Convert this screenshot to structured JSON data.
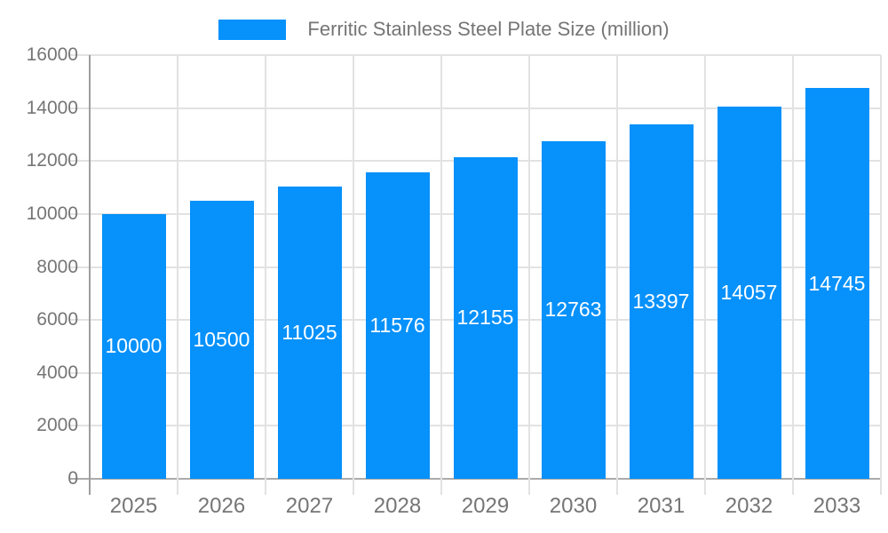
{
  "chart_data": {
    "type": "bar",
    "title": "Ferritic Stainless Steel Plate Size (million)",
    "categories": [
      "2025",
      "2026",
      "2027",
      "2028",
      "2029",
      "2030",
      "2031",
      "2032",
      "2033"
    ],
    "values": [
      10000,
      10500,
      11025,
      11576,
      12155,
      12763,
      13397,
      14057,
      14745
    ],
    "xlabel": "",
    "ylabel": "",
    "ylim": [
      0,
      16000
    ],
    "ytick_step": 2000,
    "ytick_labels": [
      "0",
      "2000",
      "4000",
      "6000",
      "8000",
      "10000",
      "12000",
      "14000",
      "16000"
    ],
    "grid": true,
    "legend_position": "top",
    "bar_labels_shown": true
  },
  "colors": {
    "bar": "#0691fb",
    "bar_label": "#ffffff",
    "axis": "#9e9e9e",
    "baseline": "#ababab",
    "grid": "#e2e2e2",
    "text": "#757575",
    "background": "#ffffff"
  }
}
